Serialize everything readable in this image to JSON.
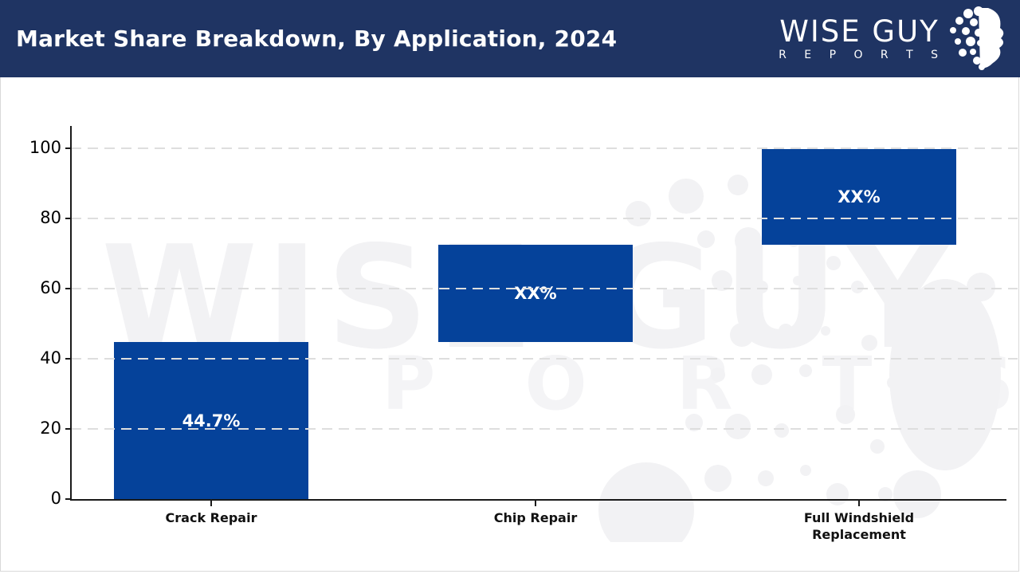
{
  "header": {
    "title": "Market Share Breakdown, By Application, 2024",
    "bg_color": "#1f3463",
    "logo": {
      "line1": "WISE GUY",
      "line2": "R E P O R T S"
    }
  },
  "watermark": {
    "line1": "WISE GUY",
    "line2": "P O R T S"
  },
  "chart_data": {
    "type": "bar",
    "subtype": "floating-waterfall",
    "title": "Market Share Breakdown, By Application, 2024",
    "xlabel": "",
    "ylabel": "",
    "categories": [
      "Crack Repair",
      "Chip Repair",
      "Full Windshield Replacement"
    ],
    "segments": [
      {
        "category": "Crack Repair",
        "y0": 0,
        "y1": 44.7,
        "label": "44.7%"
      },
      {
        "category": "Chip Repair",
        "y0": 44.7,
        "y1": 72.6,
        "label": "XX%"
      },
      {
        "category": "Full Windshield Replacement",
        "y0": 72.6,
        "y1": 99.8,
        "label": "XX%"
      }
    ],
    "yticks": [
      0,
      20,
      40,
      60,
      80,
      100
    ],
    "ylim": [
      0,
      106
    ],
    "grid": "horizontal-dashed",
    "legend": "none",
    "bar_color": "#05429a",
    "bar_label_color": "#ffffff",
    "grid_color": "#dedede",
    "axis_color": "#1a1a1a"
  }
}
